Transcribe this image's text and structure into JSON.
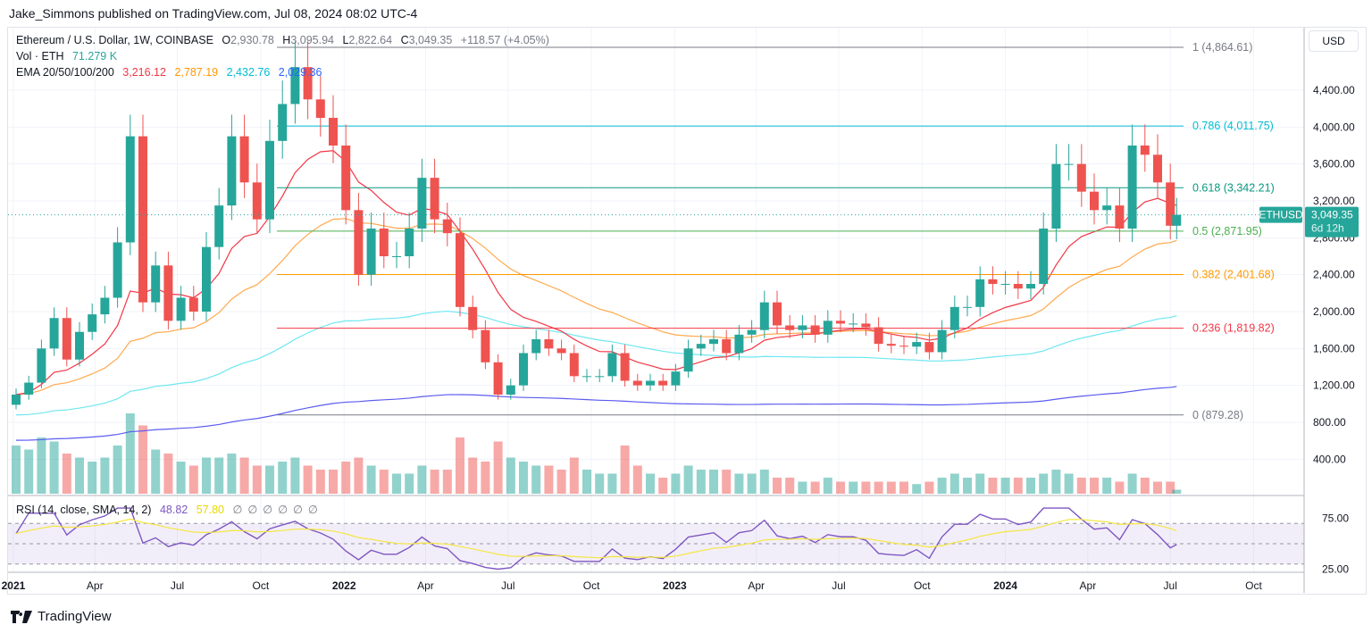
{
  "publisher": "Jake_Simmons published on TradingView.com, Jul 08, 2024 08:02 UTC-4",
  "legend": {
    "symbol": "Ethereum / U.S. Dollar, 1W, COINBASE",
    "o_label": "O",
    "o": "2,930.78",
    "h_label": "H",
    "h": "3,095.94",
    "l_label": "L",
    "l": "2,822.64",
    "c_label": "C",
    "c": "3,049.35",
    "change": "+118.57 (+4.05%)",
    "vol_label": "Vol · ETH",
    "vol": "71.279 K",
    "ema_label": "EMA 20/50/100/200",
    "ema20": "3,216.12",
    "ema50": "2,787.19",
    "ema100": "2,432.76",
    "ema200": "2,029.36",
    "rsi_label": "RSI (14, close, SMA, 14, 2)",
    "rsi": "48.82",
    "rsi_sma": "57.80",
    "rsi_na": [
      "∅",
      "∅",
      "∅",
      "∅",
      "∅",
      "∅"
    ]
  },
  "currency_button": "USD",
  "price_tag": {
    "symbol": "ETHUSD",
    "price": "3,049.35",
    "countdown": "6d 12h"
  },
  "colors": {
    "up": "#26a69a",
    "down": "#ef5350",
    "ema20": "#f23645",
    "ema50": "#ffa94d",
    "ema100": "#6ee7f0",
    "ema200": "#5b5cf0",
    "rsi": "#7e57c2",
    "rsi_sma": "#f5e642"
  },
  "footer_logo": "TradingView",
  "chart_data": {
    "type": "candlestick",
    "title": "Ethereum / U.S. Dollar, 1W, COINBASE",
    "ylim": [
      600,
      4950
    ],
    "grid": true,
    "y_ticks": [
      "4,400.00",
      "4,000.00",
      "3,600.00",
      "3,200.00",
      "2,800.00",
      "2,400.00",
      "2,000.00",
      "1,600.00",
      "1,200.00",
      "800.00",
      "400.00"
    ],
    "y_tick_values": [
      4400,
      4000,
      3600,
      3200,
      2800,
      2400,
      2000,
      1600,
      1200,
      800,
      400
    ],
    "x_ticks": [
      {
        "d": "2021-01-01",
        "t": "2021"
      },
      {
        "d": "2021-04-01",
        "t": "Apr"
      },
      {
        "d": "2021-07-01",
        "t": "Jul"
      },
      {
        "d": "2021-10-01",
        "t": "Oct"
      },
      {
        "d": "2022-01-01",
        "t": "2022"
      },
      {
        "d": "2022-04-01",
        "t": "Apr"
      },
      {
        "d": "2022-07-01",
        "t": "Jul"
      },
      {
        "d": "2022-10-01",
        "t": "Oct"
      },
      {
        "d": "2023-01-01",
        "t": "2023"
      },
      {
        "d": "2023-04-01",
        "t": "Apr"
      },
      {
        "d": "2023-07-01",
        "t": "Jul"
      },
      {
        "d": "2023-10-01",
        "t": "Oct"
      },
      {
        "d": "2024-01-01",
        "t": "2024"
      },
      {
        "d": "2024-04-01",
        "t": "Apr"
      },
      {
        "d": "2024-07-01",
        "t": "Jul"
      },
      {
        "d": "2024-10-01",
        "t": "Oct"
      }
    ],
    "fib_levels": [
      {
        "ratio": "1",
        "value": 4864.61,
        "label": "1 (4,864.61)",
        "color": "#787b86"
      },
      {
        "ratio": "0.786",
        "value": 4011.75,
        "label": "0.786 (4,011.75)",
        "color": "#00bcd4"
      },
      {
        "ratio": "0.618",
        "value": 3342.21,
        "label": "0.618 (3,342.21)",
        "color": "#089981"
      },
      {
        "ratio": "0.5",
        "value": 2871.95,
        "label": "0.5 (2,871.95)",
        "color": "#4caf50"
      },
      {
        "ratio": "0.382",
        "value": 2401.68,
        "label": "0.382 (2,401.68)",
        "color": "#ff9800"
      },
      {
        "ratio": "0.236",
        "value": 1819.82,
        "label": "0.236 (1,819.82)",
        "color": "#f23645"
      },
      {
        "ratio": "0",
        "value": 879.28,
        "label": "0 (879.28)",
        "color": "#787b86"
      }
    ],
    "rsi_ticks": [
      {
        "v": 75,
        "t": "75.00"
      },
      {
        "v": 25,
        "t": "25.00"
      }
    ],
    "dates": [
      "2021-01-04",
      "2021-01-18",
      "2021-02-01",
      "2021-02-15",
      "2021-03-01",
      "2021-03-15",
      "2021-03-29",
      "2021-04-12",
      "2021-04-26",
      "2021-05-10",
      "2021-05-24",
      "2021-06-07",
      "2021-06-21",
      "2021-07-05",
      "2021-07-19",
      "2021-08-02",
      "2021-08-16",
      "2021-08-30",
      "2021-09-13",
      "2021-09-27",
      "2021-10-11",
      "2021-10-25",
      "2021-11-08",
      "2021-11-22",
      "2021-12-06",
      "2021-12-20",
      "2022-01-03",
      "2022-01-17",
      "2022-01-31",
      "2022-02-14",
      "2022-02-28",
      "2022-03-14",
      "2022-03-28",
      "2022-04-11",
      "2022-04-25",
      "2022-05-09",
      "2022-05-23",
      "2022-06-06",
      "2022-06-20",
      "2022-07-04",
      "2022-07-18",
      "2022-08-01",
      "2022-08-15",
      "2022-08-29",
      "2022-09-12",
      "2022-09-26",
      "2022-10-10",
      "2022-10-24",
      "2022-11-07",
      "2022-11-21",
      "2022-12-05",
      "2022-12-19",
      "2023-01-02",
      "2023-01-16",
      "2023-01-30",
      "2023-02-13",
      "2023-02-27",
      "2023-03-13",
      "2023-03-27",
      "2023-04-10",
      "2023-04-24",
      "2023-05-08",
      "2023-05-22",
      "2023-06-05",
      "2023-06-19",
      "2023-07-03",
      "2023-07-17",
      "2023-07-31",
      "2023-08-14",
      "2023-08-28",
      "2023-09-11",
      "2023-09-25",
      "2023-10-09",
      "2023-10-23",
      "2023-11-06",
      "2023-11-20",
      "2023-12-04",
      "2023-12-18",
      "2024-01-01",
      "2024-01-15",
      "2024-01-29",
      "2024-02-12",
      "2024-02-26",
      "2024-03-11",
      "2024-03-25",
      "2024-04-08",
      "2024-04-22",
      "2024-05-06",
      "2024-05-20",
      "2024-06-03",
      "2024-06-17",
      "2024-07-01",
      "2024-07-08"
    ],
    "close": [
      1100,
      1230,
      1600,
      1930,
      1480,
      1780,
      1970,
      2150,
      2750,
      3900,
      2100,
      2500,
      1900,
      2150,
      2000,
      2700,
      3150,
      3900,
      3400,
      3000,
      3850,
      4250,
      4650,
      4300,
      4100,
      3800,
      3100,
      2400,
      2900,
      2600,
      2600,
      2900,
      3450,
      3000,
      2850,
      2050,
      1800,
      1450,
      1100,
      1200,
      1550,
      1700,
      1600,
      1550,
      1300,
      1300,
      1300,
      1550,
      1250,
      1200,
      1250,
      1200,
      1350,
      1600,
      1650,
      1700,
      1550,
      1750,
      1800,
      2100,
      1850,
      1800,
      1850,
      1750,
      1900,
      1870,
      1870,
      1830,
      1650,
      1630,
      1620,
      1670,
      1560,
      1800,
      2050,
      2050,
      2350,
      2300,
      2300,
      2250,
      2300,
      2900,
      3600,
      3600,
      3300,
      3100,
      3150,
      2900,
      3800,
      3700,
      3400,
      2930.78,
      3049.35
    ],
    "volume_relative": [
      60,
      55,
      70,
      65,
      50,
      45,
      40,
      45,
      60,
      100,
      85,
      55,
      50,
      40,
      35,
      45,
      45,
      50,
      45,
      35,
      35,
      40,
      45,
      35,
      30,
      30,
      40,
      45,
      35,
      30,
      25,
      25,
      35,
      30,
      30,
      70,
      45,
      40,
      65,
      45,
      40,
      35,
      35,
      30,
      45,
      30,
      25,
      25,
      60,
      35,
      25,
      20,
      25,
      35,
      30,
      30,
      30,
      25,
      25,
      30,
      20,
      20,
      15,
      15,
      20,
      15,
      15,
      15,
      15,
      15,
      15,
      12,
      15,
      20,
      25,
      20,
      25,
      20,
      20,
      20,
      20,
      25,
      30,
      25,
      20,
      20,
      20,
      15,
      25,
      20,
      15,
      15,
      5
    ]
  }
}
